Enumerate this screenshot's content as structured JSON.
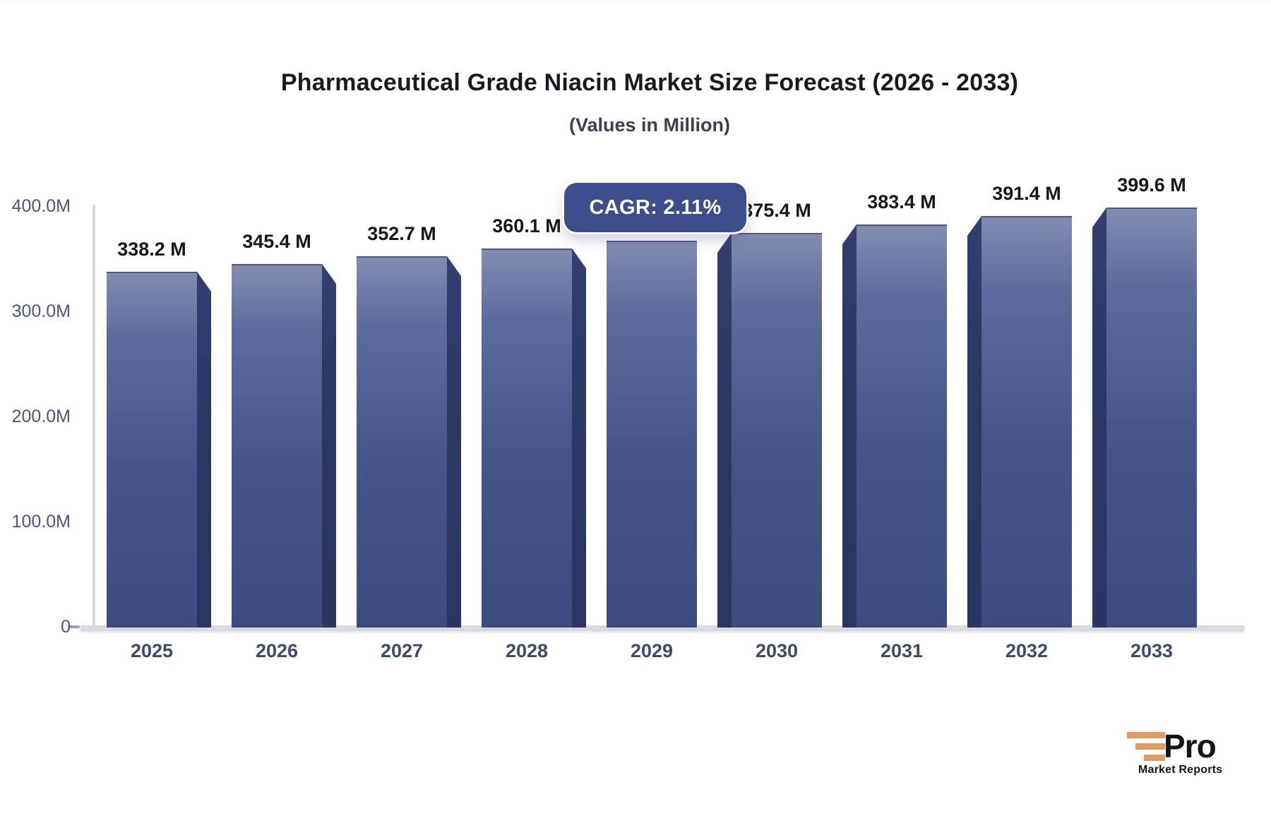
{
  "header": {
    "title": "Pharmaceutical Grade Niacin Market Size Forecast (2026 - 2033)",
    "subtitle": "(Values in Million)"
  },
  "badge": {
    "label": "CAGR: 2.11%"
  },
  "chart_data": {
    "type": "bar",
    "title": "Pharmaceutical Grade Niacin Market Size Forecast (2026 - 2033)",
    "subtitle": "(Values in Million)",
    "categories": [
      "2025",
      "2026",
      "2027",
      "2028",
      "2029",
      "2030",
      "2031",
      "2032",
      "2033"
    ],
    "values": [
      338.2,
      345.4,
      352.7,
      360.1,
      367.7,
      375.4,
      383.4,
      391.4,
      399.6
    ],
    "value_labels": [
      "338.2 M",
      "345.4 M",
      "352.7 M",
      "360.1 M",
      "",
      "375.4 M",
      "383.4 M",
      "391.4 M",
      "399.6 M"
    ],
    "hidden_label_note": "2029 value label is covered by the CAGR badge",
    "xlabel": "",
    "ylabel": "",
    "ylim": [
      0,
      400
    ],
    "y_ticks": [
      {
        "value": 0,
        "label": "0"
      },
      {
        "value": 100,
        "label": "100.0M"
      },
      {
        "value": 200,
        "label": "200.0M"
      },
      {
        "value": 300,
        "label": "300.0M"
      },
      {
        "value": 400,
        "label": "400.0M"
      }
    ],
    "grid": false,
    "legend": null
  },
  "logo": {
    "word": "Pro",
    "tagline": "Market Reports"
  },
  "colors": {
    "bar_face_top": "#828cb1",
    "bar_face_bottom": "#3d4b7f",
    "bar_side": "#2c3865",
    "badge_bg": "#3e4d8b",
    "tick_color": "#4a5680",
    "xlabel_color": "#3e4a66",
    "axis_line": "#d3d6e1",
    "baseline": "#d7d9e3",
    "logo_orange": "#dc9c66"
  }
}
